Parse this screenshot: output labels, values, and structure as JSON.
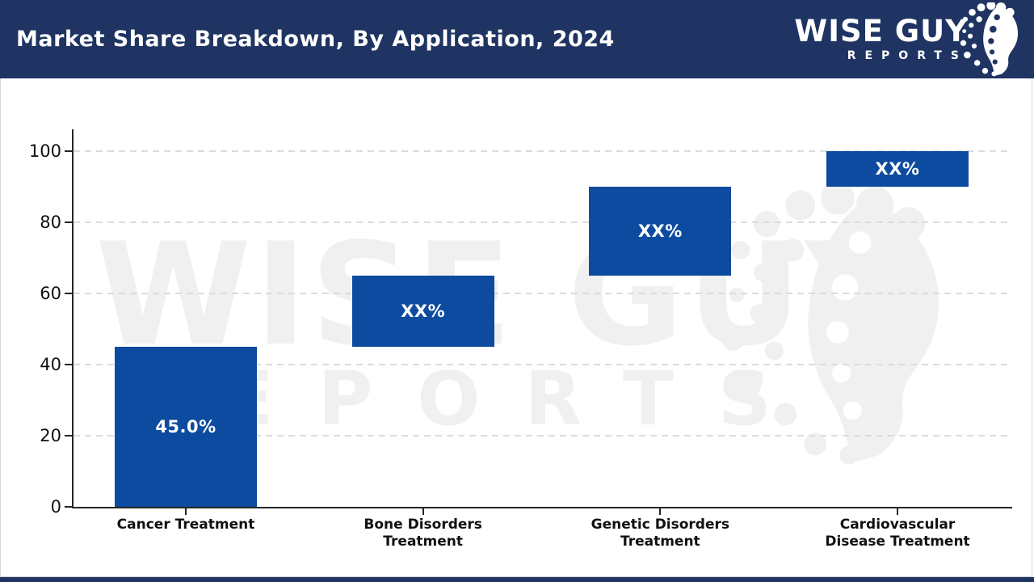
{
  "header": {
    "title": "Market Share Breakdown, By Application, 2024",
    "logo": {
      "line1": "WISE GUY",
      "line2": "REPORTS"
    }
  },
  "watermark": {
    "line1": "WISE GUY",
    "line2": "REPORTS"
  },
  "chart_data": {
    "type": "bar",
    "subtype": "stacked-waterfall",
    "title": "Market Share Breakdown, By Application, 2024",
    "categories": [
      "Cancer Treatment",
      "Bone Disorders Treatment",
      "Genetic Disorders Treatment",
      "Cardiovascular Disease Treatment"
    ],
    "categories_display": [
      [
        "Cancer Treatment"
      ],
      [
        "Bone Disorders",
        "Treatment"
      ],
      [
        "Genetic Disorders",
        "Treatment"
      ],
      [
        "Cardiovascular",
        "Disease Treatment"
      ]
    ],
    "bars": [
      {
        "category": "Cancer Treatment",
        "start": 0,
        "end": 45,
        "label": "45.0%"
      },
      {
        "category": "Bone Disorders Treatment",
        "start": 45,
        "end": 65,
        "label": "XX%"
      },
      {
        "category": "Genetic Disorders Treatment",
        "start": 65,
        "end": 90,
        "label": "XX%"
      },
      {
        "category": "Cardiovascular Disease Treatment",
        "start": 90,
        "end": 100,
        "label": "XX%"
      }
    ],
    "ylim": [
      0,
      100
    ],
    "yticks": [
      0,
      20,
      40,
      60,
      80,
      100
    ],
    "xlabel": "",
    "ylabel": "",
    "grid": "horizontal-dashed",
    "legend": "none",
    "colors": {
      "bar": "#0c4b9f",
      "grid": "#dbdbdb",
      "axis": "#262626",
      "header": "#1f3462",
      "value_text": "#ffffff"
    }
  }
}
